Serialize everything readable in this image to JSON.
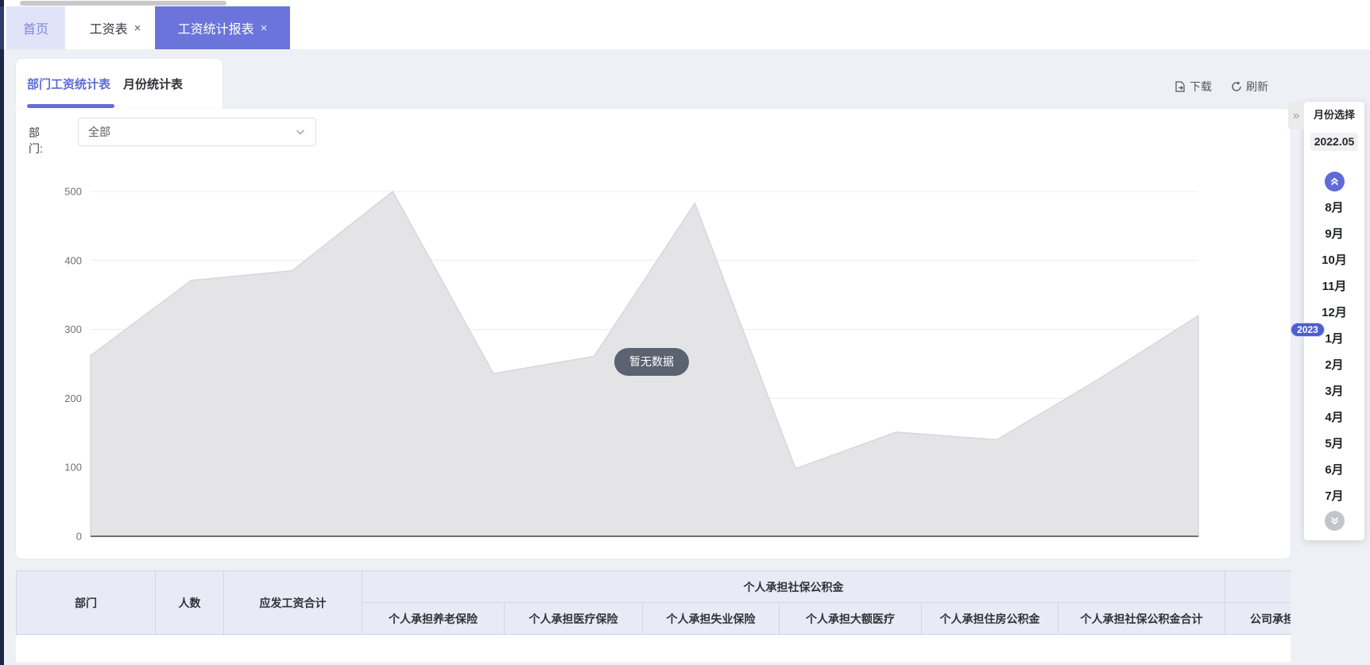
{
  "top_tabs": {
    "items": [
      {
        "label": "首页",
        "closable": false,
        "active": false,
        "home": true
      },
      {
        "label": "工资表",
        "closable": true,
        "active": false,
        "home": false
      },
      {
        "label": "工资统计报表",
        "closable": true,
        "active": true,
        "home": false
      }
    ],
    "close_glyph": "×"
  },
  "window_controls": {
    "close_glyph": "✕"
  },
  "sub_tabs": [
    {
      "label": "部门工资统计表",
      "active": true
    },
    {
      "label": "月份统计表",
      "active": false
    }
  ],
  "actions": {
    "download": "下载",
    "refresh": "刷新"
  },
  "filter": {
    "label": "部门:",
    "value": "全部"
  },
  "chart": {
    "empty_text": "暂无数据"
  },
  "chart_data": {
    "type": "area",
    "title": "",
    "xlabel": "",
    "ylabel": "",
    "x_labels": [],
    "values": [
      262,
      371,
      385,
      500,
      236,
      261,
      483,
      98,
      151,
      140,
      227,
      320
    ],
    "ylim": [
      0,
      500
    ],
    "yticks": [
      0,
      100,
      200,
      300,
      400,
      500
    ],
    "grid": true,
    "area_color": "#e4e4e6",
    "note": "gray placeholder area chart shown with no-data tooltip"
  },
  "month_panel": {
    "title": "月份选择",
    "selected": "2022.05",
    "collapse_glyph": "»",
    "groups": [
      {
        "year_badge": "",
        "months": [
          "8月",
          "9月",
          "10月",
          "11月",
          "12月"
        ]
      },
      {
        "year_badge": "2023",
        "months": [
          "1月",
          "2月",
          "3月",
          "4月",
          "5月",
          "6月",
          "7月"
        ]
      }
    ]
  },
  "table": {
    "simple_columns": [
      "部门",
      "人数",
      "应发工资合计"
    ],
    "groups": [
      {
        "label": "个人承担社保公积金",
        "children": [
          "个人承担养老保险",
          "个人承担医疗保险",
          "个人承担失业保险",
          "个人承担大额医疗",
          "个人承担住房公积金",
          "个人承担社保公积金合计"
        ]
      },
      {
        "label": "",
        "children": [
          "公司承担养老保险"
        ]
      }
    ]
  },
  "colors": {
    "accent": "#6a74da",
    "subtab_active": "#5d6cd9",
    "table_header_bg": "#e8ebf6",
    "page_bg": "#eef0f5",
    "tooltip_bg": "#5b6270",
    "badge_bg": "#4e5ed4"
  }
}
